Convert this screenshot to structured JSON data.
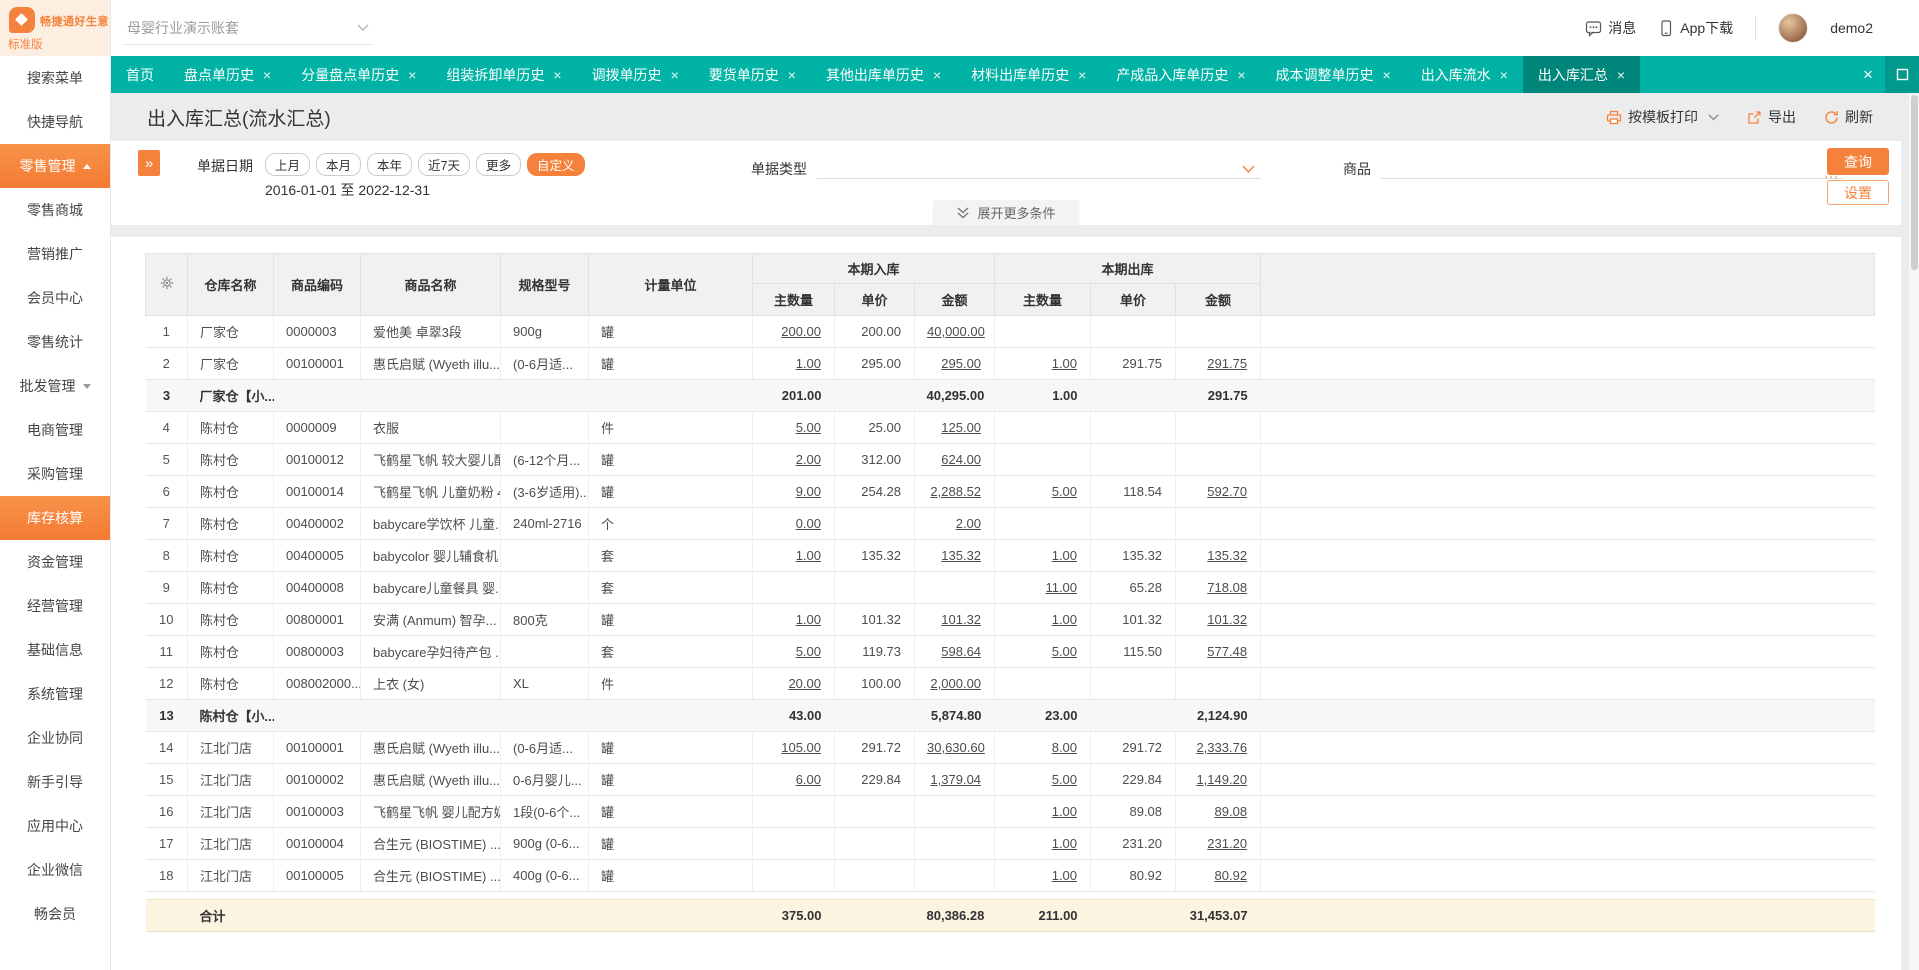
{
  "brand": {
    "name": "畅捷通好生意",
    "edition": "标准版"
  },
  "topbar": {
    "account": "母婴行业演示账套",
    "messages": "消息",
    "app_download": "App下载",
    "username": "demo2"
  },
  "tabbar": {
    "close_glyph": "×",
    "tabs": [
      {
        "label": "首页",
        "closable": false,
        "active": false
      },
      {
        "label": "盘点单历史",
        "closable": true,
        "active": false
      },
      {
        "label": "分量盘点单历史",
        "closable": true,
        "active": false
      },
      {
        "label": "组装拆卸单历史",
        "closable": true,
        "active": false
      },
      {
        "label": "调拨单历史",
        "closable": true,
        "active": false
      },
      {
        "label": "要货单历史",
        "closable": true,
        "active": false
      },
      {
        "label": "其他出库单历史",
        "closable": true,
        "active": false
      },
      {
        "label": "材料出库单历史",
        "closable": true,
        "active": false
      },
      {
        "label": "产成品入库单历史",
        "closable": true,
        "active": false
      },
      {
        "label": "成本调整单历史",
        "closable": true,
        "active": false
      },
      {
        "label": "出入库流水",
        "closable": true,
        "active": false
      },
      {
        "label": "出入库汇总",
        "closable": true,
        "active": true
      }
    ]
  },
  "page": {
    "title": "出入库汇总(流水汇总)",
    "toolbar": {
      "print": "按模板打印",
      "export": "导出",
      "refresh": "刷新"
    }
  },
  "filters": {
    "collapse_glyph": "»",
    "date": {
      "label": "单据日期",
      "pills": [
        "上月",
        "本月",
        "本年",
        "近7天",
        "更多"
      ],
      "custom": "自定义",
      "range": "2016-01-01 至 2022-12-31"
    },
    "doc_type": {
      "label": "单据类型",
      "value": ""
    },
    "product": {
      "label": "商品",
      "value": "",
      "more": "..."
    },
    "query_button": "查询",
    "settings_button": "设置",
    "expand_more": "展开更多条件"
  },
  "sidebar": {
    "items": [
      {
        "label": "搜索菜单",
        "style": "item"
      },
      {
        "label": "快捷导航",
        "style": "item"
      },
      {
        "label": "零售管理",
        "style": "group-open"
      },
      {
        "label": "零售商城",
        "style": "item"
      },
      {
        "label": "营销推广",
        "style": "item"
      },
      {
        "label": "会员中心",
        "style": "item"
      },
      {
        "label": "零售统计",
        "style": "item"
      },
      {
        "label": "批发管理",
        "style": "group-closed"
      },
      {
        "label": "电商管理",
        "style": "item"
      },
      {
        "label": "采购管理",
        "style": "item"
      },
      {
        "label": "库存核算",
        "style": "item",
        "active": true
      },
      {
        "label": "资金管理",
        "style": "item"
      },
      {
        "label": "经营管理",
        "style": "item"
      },
      {
        "label": "基础信息",
        "style": "item"
      },
      {
        "label": "系统管理",
        "style": "item"
      },
      {
        "label": "企业协同",
        "style": "item"
      },
      {
        "label": "新手引导",
        "style": "item"
      },
      {
        "label": "应用中心",
        "style": "item"
      },
      {
        "label": "企业微信",
        "style": "item"
      },
      {
        "label": "畅会员",
        "style": "item"
      }
    ]
  },
  "table": {
    "columns": {
      "warehouse": "仓库名称",
      "code": "商品编码",
      "name": "商品名称",
      "spec": "规格型号",
      "unit": "计量单位"
    },
    "groups": {
      "inbound": "本期入库",
      "outbound": "本期出库"
    },
    "sub_columns": [
      "主数量",
      "单价",
      "金额"
    ],
    "rows": [
      {
        "num": "1",
        "wh": "厂家仓",
        "code": "0000003",
        "name": "爱他美 卓翠3段",
        "spec": "900g",
        "unit": "罐",
        "iq": "200.00",
        "ip": "200.00",
        "ia": "40,000.00",
        "oq": "",
        "op": "",
        "oa": ""
      },
      {
        "num": "2",
        "wh": "厂家仓",
        "code": "00100001",
        "name": "惠氏启赋 (Wyeth illu...",
        "spec": "(0-6月适...",
        "unit": "罐",
        "iq": "1.00",
        "ip": "295.00",
        "ia": "295.00",
        "oq": "1.00",
        "op": "291.75",
        "oa": "291.75"
      },
      {
        "type": "subtotal",
        "num": "3",
        "wh": "厂家仓【小...",
        "code": "",
        "name": "",
        "spec": "",
        "unit": "",
        "iq": "201.00",
        "ip": "",
        "ia": "40,295.00",
        "oq": "1.00",
        "op": "",
        "oa": "291.75"
      },
      {
        "num": "4",
        "wh": "陈村仓",
        "code": "0000009",
        "name": "衣服",
        "spec": "",
        "unit": "件",
        "iq": "5.00",
        "ip": "25.00",
        "ia": "125.00",
        "oq": "",
        "op": "",
        "oa": ""
      },
      {
        "num": "5",
        "wh": "陈村仓",
        "code": "00100012",
        "name": "飞鹤星飞帆 较大婴儿配...",
        "spec": "(6-12个月...",
        "unit": "罐",
        "iq": "2.00",
        "ip": "312.00",
        "ia": "624.00",
        "oq": "",
        "op": "",
        "oa": ""
      },
      {
        "num": "6",
        "wh": "陈村仓",
        "code": "00100014",
        "name": "飞鹤星飞帆 儿童奶粉 4...",
        "spec": "(3-6岁适用)...",
        "unit": "罐",
        "iq": "9.00",
        "ip": "254.28",
        "ia": "2,288.52",
        "oq": "5.00",
        "op": "118.54",
        "oa": "592.70"
      },
      {
        "num": "7",
        "wh": "陈村仓",
        "code": "00400002",
        "name": "babycare学饮杯 儿童...",
        "spec": "240ml-2716",
        "unit": "个",
        "iq": "0.00",
        "ip": "",
        "ia": "2.00",
        "oq": "",
        "op": "",
        "oa": ""
      },
      {
        "num": "8",
        "wh": "陈村仓",
        "code": "00400005",
        "name": "babycolor 婴儿辅食机 ...",
        "spec": "",
        "unit": "套",
        "iq": "1.00",
        "ip": "135.32",
        "ia": "135.32",
        "oq": "1.00",
        "op": "135.32",
        "oa": "135.32"
      },
      {
        "num": "9",
        "wh": "陈村仓",
        "code": "00400008",
        "name": "babycare儿童餐具 婴...",
        "spec": "",
        "unit": "套",
        "iq": "",
        "ip": "",
        "ia": "",
        "oq": "11.00",
        "op": "65.28",
        "oa": "718.08"
      },
      {
        "num": "10",
        "wh": "陈村仓",
        "code": "00800001",
        "name": "安满 (Anmum) 智孕...",
        "spec": "800克",
        "unit": "罐",
        "iq": "1.00",
        "ip": "101.32",
        "ia": "101.32",
        "oq": "1.00",
        "op": "101.32",
        "oa": "101.32"
      },
      {
        "num": "11",
        "wh": "陈村仓",
        "code": "00800003",
        "name": "babycare孕妇待产包 ...",
        "spec": "",
        "unit": "套",
        "iq": "5.00",
        "ip": "119.73",
        "ia": "598.64",
        "oq": "5.00",
        "op": "115.50",
        "oa": "577.48"
      },
      {
        "num": "12",
        "wh": "陈村仓",
        "code": "008002000...",
        "name": "上衣 (女)",
        "spec": "XL",
        "unit": "件",
        "iq": "20.00",
        "ip": "100.00",
        "ia": "2,000.00",
        "oq": "",
        "op": "",
        "oa": ""
      },
      {
        "type": "subtotal",
        "num": "13",
        "wh": "陈村仓【小...",
        "code": "",
        "name": "",
        "spec": "",
        "unit": "",
        "iq": "43.00",
        "ip": "",
        "ia": "5,874.80",
        "oq": "23.00",
        "op": "",
        "oa": "2,124.90"
      },
      {
        "num": "14",
        "wh": "江北门店",
        "code": "00100001",
        "name": "惠氏启赋 (Wyeth illu...",
        "spec": "(0-6月适...",
        "unit": "罐",
        "iq": "105.00",
        "ip": "291.72",
        "ia": "30,630.60",
        "oq": "8.00",
        "op": "291.72",
        "oa": "2,333.76"
      },
      {
        "num": "15",
        "wh": "江北门店",
        "code": "00100002",
        "name": "惠氏启赋 (Wyeth illu...",
        "spec": "0-6月婴儿...",
        "unit": "罐",
        "iq": "6.00",
        "ip": "229.84",
        "ia": "1,379.04",
        "oq": "5.00",
        "op": "229.84",
        "oa": "1,149.20"
      },
      {
        "num": "16",
        "wh": "江北门店",
        "code": "00100003",
        "name": "飞鹤星飞帆 婴儿配方奶...",
        "spec": "1段(0-6个...",
        "unit": "罐",
        "iq": "",
        "ip": "",
        "ia": "",
        "oq": "1.00",
        "op": "89.08",
        "oa": "89.08"
      },
      {
        "num": "17",
        "wh": "江北门店",
        "code": "00100004",
        "name": "合生元 (BIOSTIME) ...",
        "spec": "900g (0-6...",
        "unit": "罐",
        "iq": "",
        "ip": "",
        "ia": "",
        "oq": "1.00",
        "op": "231.20",
        "oa": "231.20"
      },
      {
        "num": "18",
        "wh": "江北门店",
        "code": "00100005",
        "name": "合生元 (BIOSTIME) ...",
        "spec": "400g (0-6...",
        "unit": "罐",
        "iq": "",
        "ip": "",
        "ia": "",
        "oq": "1.00",
        "op": "80.92",
        "oa": "80.92"
      }
    ],
    "total": {
      "label": "合计",
      "in_qty": "375.00",
      "in_amt": "80,386.28",
      "out_qty": "211.00",
      "out_amt": "31,453.07"
    }
  },
  "colors": {
    "accent_orange": "#f5823c",
    "teal": "#00b3a4",
    "teal_dark": "#00857b",
    "total_row_bg": "#fcf3e0"
  }
}
